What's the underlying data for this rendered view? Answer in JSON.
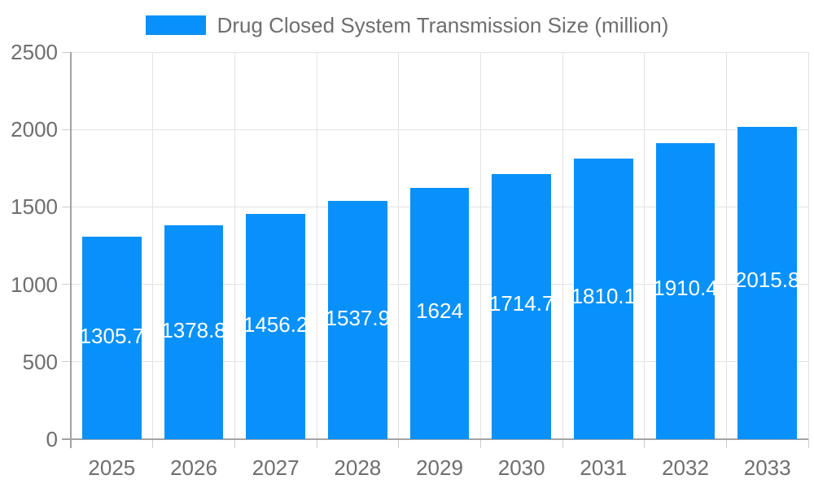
{
  "chart_data": {
    "type": "bar",
    "title": "Drug Closed System Transmission Size (million)",
    "legend_entries": [
      "Drug Closed System Transmission Size (million)"
    ],
    "legend_position": "top-center",
    "categories": [
      "2025",
      "2026",
      "2027",
      "2028",
      "2029",
      "2030",
      "2031",
      "2032",
      "2033"
    ],
    "series": [
      {
        "name": "Drug Closed System Transmission Size (million)",
        "values": [
          1305.7,
          1378.8,
          1456.2,
          1537.9,
          1624,
          1714.7,
          1810.1,
          1910.4,
          2015.8
        ]
      }
    ],
    "value_labels": [
      "1305.7",
      "1378.8",
      "1456.2",
      "1537.9",
      "1624",
      "1714.7",
      "1810.1",
      "1910.4",
      "2015.8"
    ],
    "value_label_placement": "inside-middle",
    "xlabel": "",
    "ylabel": "",
    "ylim": [
      0,
      2500
    ],
    "yticks": [
      0,
      500,
      1000,
      1500,
      2000,
      2500
    ],
    "grid": true,
    "colors": {
      "bar": "#0891fa",
      "value_label": "#ffffff",
      "axis": "#a3a3a3",
      "grid": "#e3e3e3",
      "tick": "#cccccc",
      "text": "#6e6e6e",
      "background": "#ffffff"
    }
  }
}
